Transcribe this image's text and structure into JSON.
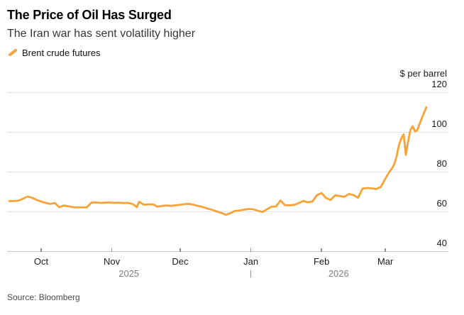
{
  "header": {
    "title": "The Price of Oil Has Surged",
    "subtitle": "The Iran war has sent volatility higher"
  },
  "legend": {
    "label": "Brent crude futures",
    "marker_color": "#F7A338"
  },
  "source": "Source: Bloomberg",
  "chart_data": {
    "type": "line",
    "title": "The Price of Oil Has Surged",
    "subtitle": "The Iran war has sent volatility higher",
    "unit_label": "$ per barrel",
    "xlabel": "",
    "ylabel": "$ per barrel",
    "ylim": [
      40,
      120
    ],
    "y_ticks": [
      40,
      60,
      80,
      100,
      120
    ],
    "grid": "horizontal-light",
    "legend_position": "top-left",
    "x_range": [
      "2025-09-17",
      "2026-03-19"
    ],
    "x_ticks_months": [
      {
        "label": "Oct",
        "date": "2025-10-01"
      },
      {
        "label": "Nov",
        "date": "2025-11-01"
      },
      {
        "label": "Dec",
        "date": "2025-12-01"
      },
      {
        "label": "Jan",
        "date": "2026-01-01"
      },
      {
        "label": "Feb",
        "date": "2026-02-01"
      },
      {
        "label": "Mar",
        "date": "2026-03-01"
      }
    ],
    "year_labels": [
      {
        "label": "2025",
        "start": "2025-09-17",
        "end": "2025-12-31"
      },
      {
        "label": "2026",
        "start": "2026-01-01",
        "end": "2026-03-19"
      }
    ],
    "year_separator_date": "2026-01-01",
    "colors": {
      "line": "#F7A338",
      "gridline": "#E4E4E4",
      "axisline": "#C6C6C6",
      "tick": "#8F8F8F"
    },
    "series": [
      {
        "name": "Brent crude futures",
        "color": "#F7A338",
        "points": [
          [
            "2025-09-17",
            65.2
          ],
          [
            "2025-09-19",
            65.2
          ],
          [
            "2025-09-21",
            65.4
          ],
          [
            "2025-09-23",
            66.4
          ],
          [
            "2025-09-25",
            67.5
          ],
          [
            "2025-09-27",
            66.9
          ],
          [
            "2025-09-29",
            65.8
          ],
          [
            "2025-10-01",
            65.0
          ],
          [
            "2025-10-03",
            64.3
          ],
          [
            "2025-10-05",
            63.8
          ],
          [
            "2025-10-07",
            64.2
          ],
          [
            "2025-10-09",
            62.1
          ],
          [
            "2025-10-11",
            63.0
          ],
          [
            "2025-10-13",
            62.6
          ],
          [
            "2025-10-15",
            62.1
          ],
          [
            "2025-10-17",
            62.0
          ],
          [
            "2025-10-19",
            62.1
          ],
          [
            "2025-10-21",
            62.0
          ],
          [
            "2025-10-23",
            64.4
          ],
          [
            "2025-10-25",
            64.5
          ],
          [
            "2025-10-27",
            64.3
          ],
          [
            "2025-10-29",
            64.4
          ],
          [
            "2025-10-31",
            64.5
          ],
          [
            "2025-11-02",
            64.3
          ],
          [
            "2025-11-04",
            64.4
          ],
          [
            "2025-11-06",
            64.2
          ],
          [
            "2025-11-08",
            64.3
          ],
          [
            "2025-11-10",
            63.8
          ],
          [
            "2025-11-12",
            62.2
          ],
          [
            "2025-11-13",
            64.9
          ],
          [
            "2025-11-15",
            63.4
          ],
          [
            "2025-11-17",
            63.5
          ],
          [
            "2025-11-19",
            63.6
          ],
          [
            "2025-11-21",
            62.4
          ],
          [
            "2025-11-23",
            62.8
          ],
          [
            "2025-11-25",
            63.0
          ],
          [
            "2025-11-27",
            62.8
          ],
          [
            "2025-11-29",
            63.1
          ],
          [
            "2025-12-01",
            63.3
          ],
          [
            "2025-12-03",
            63.7
          ],
          [
            "2025-12-05",
            63.8
          ],
          [
            "2025-12-07",
            63.3
          ],
          [
            "2025-12-09",
            62.7
          ],
          [
            "2025-12-11",
            62.2
          ],
          [
            "2025-12-13",
            61.4
          ],
          [
            "2025-12-15",
            60.8
          ],
          [
            "2025-12-17",
            60.0
          ],
          [
            "2025-12-19",
            59.3
          ],
          [
            "2025-12-21",
            58.3
          ],
          [
            "2025-12-23",
            59.1
          ],
          [
            "2025-12-25",
            60.2
          ],
          [
            "2025-12-27",
            60.5
          ],
          [
            "2025-12-29",
            60.9
          ],
          [
            "2025-12-31",
            61.2
          ],
          [
            "2026-01-02",
            61.1
          ],
          [
            "2026-01-04",
            60.4
          ],
          [
            "2026-01-06",
            59.7
          ],
          [
            "2026-01-08",
            61.0
          ],
          [
            "2026-01-10",
            62.4
          ],
          [
            "2026-01-12",
            62.5
          ],
          [
            "2026-01-14",
            65.5
          ],
          [
            "2026-01-16",
            63.1
          ],
          [
            "2026-01-18",
            63.1
          ],
          [
            "2026-01-20",
            63.3
          ],
          [
            "2026-01-22",
            64.2
          ],
          [
            "2026-01-24",
            65.2
          ],
          [
            "2026-01-26",
            64.6
          ],
          [
            "2026-01-28",
            65.0
          ],
          [
            "2026-01-30",
            68.2
          ],
          [
            "2026-02-01",
            69.2
          ],
          [
            "2026-02-03",
            66.8
          ],
          [
            "2026-02-05",
            65.8
          ],
          [
            "2026-02-07",
            68.1
          ],
          [
            "2026-02-09",
            67.7
          ],
          [
            "2026-02-11",
            67.4
          ],
          [
            "2026-02-13",
            68.8
          ],
          [
            "2026-02-15",
            68.2
          ],
          [
            "2026-02-17",
            66.9
          ],
          [
            "2026-02-19",
            71.5
          ],
          [
            "2026-02-21",
            71.8
          ],
          [
            "2026-02-23",
            71.6
          ],
          [
            "2026-02-25",
            71.3
          ],
          [
            "2026-02-27",
            72.3
          ],
          [
            "2026-03-01",
            76.5
          ],
          [
            "2026-03-02",
            78.5
          ],
          [
            "2026-03-03",
            80.3
          ],
          [
            "2026-03-04",
            81.8
          ],
          [
            "2026-03-05",
            84.0
          ],
          [
            "2026-03-06",
            88.0
          ],
          [
            "2026-03-07",
            93.5
          ],
          [
            "2026-03-08",
            96.8
          ],
          [
            "2026-03-09",
            98.8
          ],
          [
            "2026-03-10",
            88.5
          ],
          [
            "2026-03-11",
            95.5
          ],
          [
            "2026-03-12",
            101.0
          ],
          [
            "2026-03-13",
            102.9
          ],
          [
            "2026-03-14",
            100.3
          ],
          [
            "2026-03-15",
            100.8
          ],
          [
            "2026-03-16",
            104.0
          ],
          [
            "2026-03-17",
            107.0
          ],
          [
            "2026-03-18",
            109.8
          ],
          [
            "2026-03-19",
            112.5
          ]
        ]
      }
    ]
  }
}
